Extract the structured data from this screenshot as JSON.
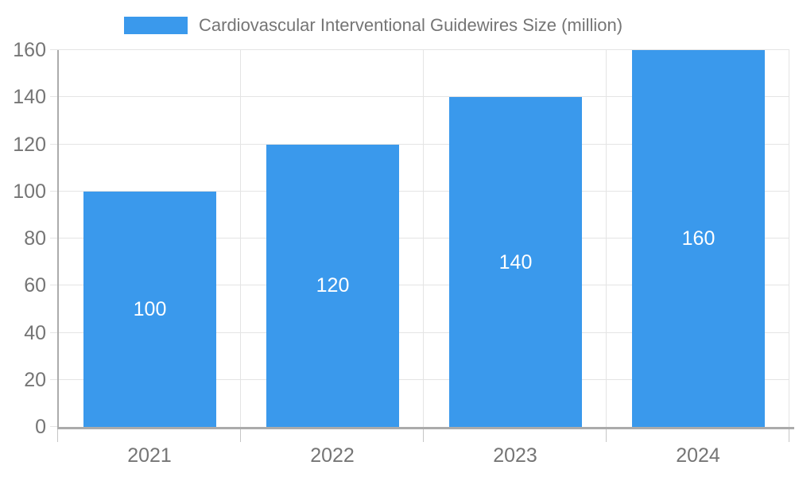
{
  "chart_data": {
    "type": "bar",
    "title": "Cardiovascular Interventional Guidewires Size (million)",
    "series": [
      {
        "name": "Cardiovascular Interventional Guidewires Size (million)",
        "values": [
          100,
          120,
          140,
          160
        ]
      }
    ],
    "categories": [
      "2021",
      "2022",
      "2023",
      "2024"
    ],
    "bar_value_labels": [
      "100",
      "120",
      "140",
      "160"
    ],
    "xlabel": "",
    "ylabel": "",
    "ylim": [
      0,
      160
    ],
    "ytick_step": 20,
    "yticks": [
      0,
      20,
      40,
      60,
      80,
      100,
      120,
      140,
      160
    ],
    "grid": true,
    "legend_position": "top",
    "colors": {
      "bar": "#3a99ec",
      "bar_label": "#ffffff",
      "axis_text": "#757575",
      "axis_line": "#ababab",
      "bottom_tick": "#c6c6c6",
      "gridline": "#e4e4e4",
      "background": "#ffffff"
    }
  },
  "legend": {
    "items": [
      {
        "label": "Cardiovascular Interventional Guidewires Size (million)",
        "swatch_color": "#3a99ec"
      }
    ]
  }
}
